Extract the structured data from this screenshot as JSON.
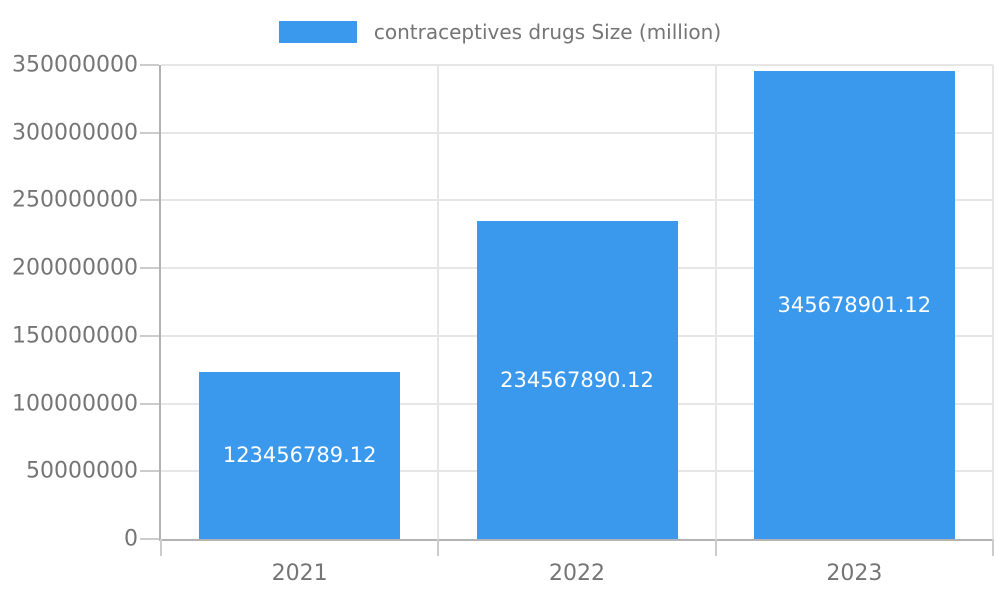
{
  "chart_data": {
    "type": "bar",
    "title": "",
    "legend": "contraceptives drugs Size (million)",
    "legend_position": "top-center",
    "categories": [
      "2021",
      "2022",
      "2023"
    ],
    "values": [
      123456789.12,
      234567890.12,
      345678901.12
    ],
    "value_labels": [
      "123456789.12",
      "234567890.12",
      "345678901.12"
    ],
    "xlabel": "",
    "ylabel": "",
    "ylim": [
      0,
      350000000
    ],
    "y_ticks": [
      0,
      50000000,
      100000000,
      150000000,
      200000000,
      250000000,
      300000000,
      350000000
    ],
    "y_tick_labels": [
      "0",
      "50000000",
      "100000000",
      "150000000",
      "200000000",
      "250000000",
      "300000000",
      "350000000"
    ],
    "grid": true,
    "colors": {
      "bar": "#3b99ed",
      "axis_line": "#b3b3b3",
      "gridline": "#e6e6e6",
      "tick": "#cccccc",
      "axis_text": "#757575",
      "value_text": "#ffffff",
      "background": "#ffffff"
    }
  }
}
